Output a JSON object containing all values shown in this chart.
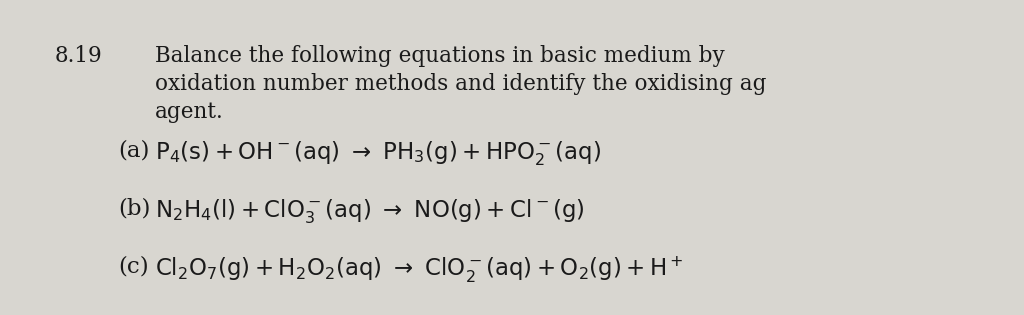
{
  "background_color": "#d8d6d0",
  "text_color": "#1a1a1a",
  "question_number": "8.19",
  "header_line1": "Balance the following equations in basic medium by",
  "header_line2": "oxidation number methods and identify the oxidising ag",
  "header_line3": "agent.",
  "font_size_header": 15.5,
  "font_size_eq": 16.5,
  "fig_width": 10.24,
  "fig_height": 3.15,
  "dpi": 100
}
